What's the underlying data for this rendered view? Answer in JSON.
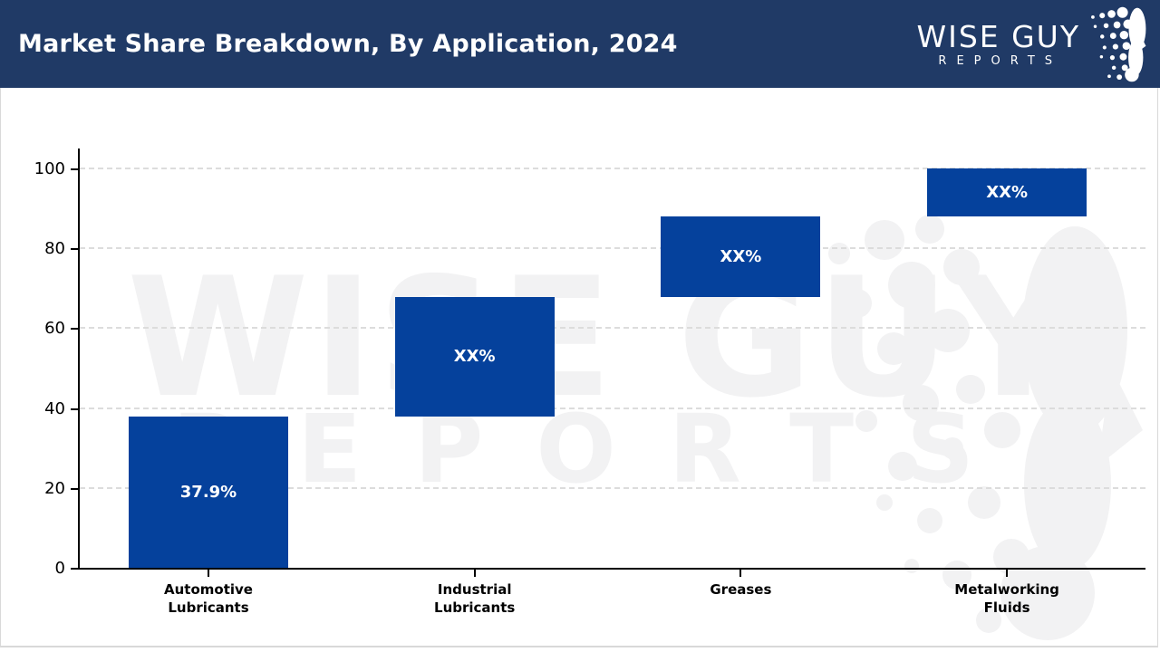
{
  "header": {
    "title": "Market Share Breakdown, By Application, 2024",
    "logo": {
      "line1": "WISE GUY",
      "line2": "REPORTS"
    }
  },
  "watermark": {
    "line1": "WISE GUY",
    "line2": "REPORTS"
  },
  "colors": {
    "header_bg": "#203a66",
    "bar": "#05419c",
    "bar_label": "#ffffff",
    "axis": "#000000",
    "gridline": "#dcdcdc",
    "watermark": "#f2f2f3",
    "frame_border": "#d9d9d9"
  },
  "chart_data": {
    "type": "bar",
    "subtype": "waterfall",
    "title": "Market Share Breakdown, By Application, 2024",
    "categories": [
      "Automotive Lubricants",
      "Industrial Lubricants",
      "Greases",
      "Metalworking Fluids"
    ],
    "segments": [
      {
        "category": "Automotive Lubricants",
        "start": 0,
        "end": 37.9,
        "label": "37.9%"
      },
      {
        "category": "Industrial Lubricants",
        "start": 37.9,
        "end": 67.9,
        "label": "XX%"
      },
      {
        "category": "Greases",
        "start": 67.9,
        "end": 87.9,
        "label": "XX%"
      },
      {
        "category": "Metalworking Fluids",
        "start": 87.9,
        "end": 100,
        "label": "XX%"
      }
    ],
    "yticks": [
      "0",
      "20",
      "40",
      "60",
      "80",
      "100"
    ],
    "ylim": [
      0,
      105
    ],
    "xlabel": "",
    "ylabel": "",
    "grid": "horizontal-dashed",
    "legend": "none"
  }
}
